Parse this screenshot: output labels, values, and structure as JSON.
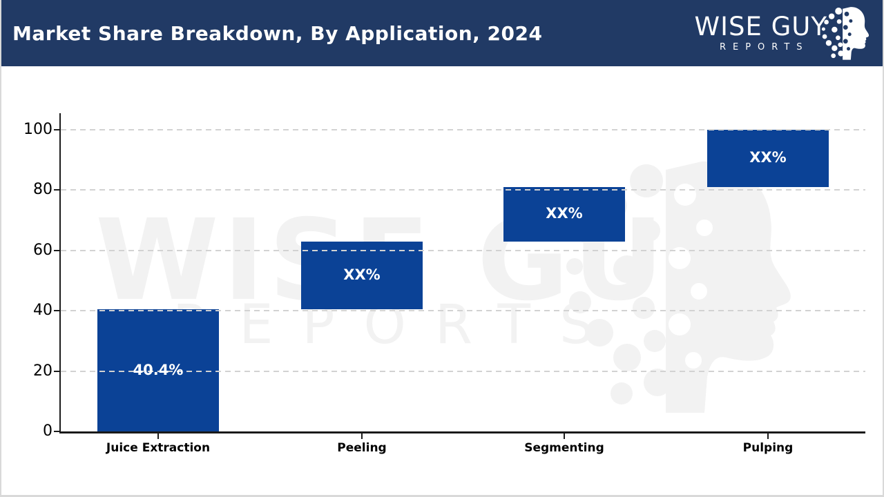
{
  "header": {
    "title": "Market Share Breakdown, By Application, 2024",
    "logo": {
      "line1": "WISE GUY",
      "line2": "REPORTS"
    }
  },
  "watermark": {
    "line1": "WISE GUY",
    "line2": "REPORTS"
  },
  "chart_data": {
    "type": "bar",
    "subtype": "waterfall",
    "title": "Market Share Breakdown, By Application, 2024",
    "categories": [
      "Juice Extraction",
      "Peeling",
      "Segmenting",
      "Pulping"
    ],
    "segments": [
      {
        "category": "Juice Extraction",
        "start": 0,
        "end": 40.4,
        "label": "40.4%"
      },
      {
        "category": "Peeling",
        "start": 40.4,
        "end": 63,
        "label": "XX%"
      },
      {
        "category": "Segmenting",
        "start": 63,
        "end": 81,
        "label": "XX%"
      },
      {
        "category": "Pulping",
        "start": 81,
        "end": 100,
        "label": "XX%"
      }
    ],
    "yticks": [
      0,
      20,
      40,
      60,
      80,
      100
    ],
    "ylim": [
      0,
      105
    ],
    "xlabel": "",
    "ylabel": "",
    "legend": "none",
    "grid": "horizontal-dashed",
    "bar_color": "#0b4296",
    "value_label_color": "#ffffff"
  },
  "colors": {
    "header_bg": "#213a65",
    "bar": "#0b4296",
    "grid": "#d2d2d2",
    "axis": "#1a1a1a",
    "watermark": "#f2f2f2",
    "frame": "#d9d9d9"
  }
}
